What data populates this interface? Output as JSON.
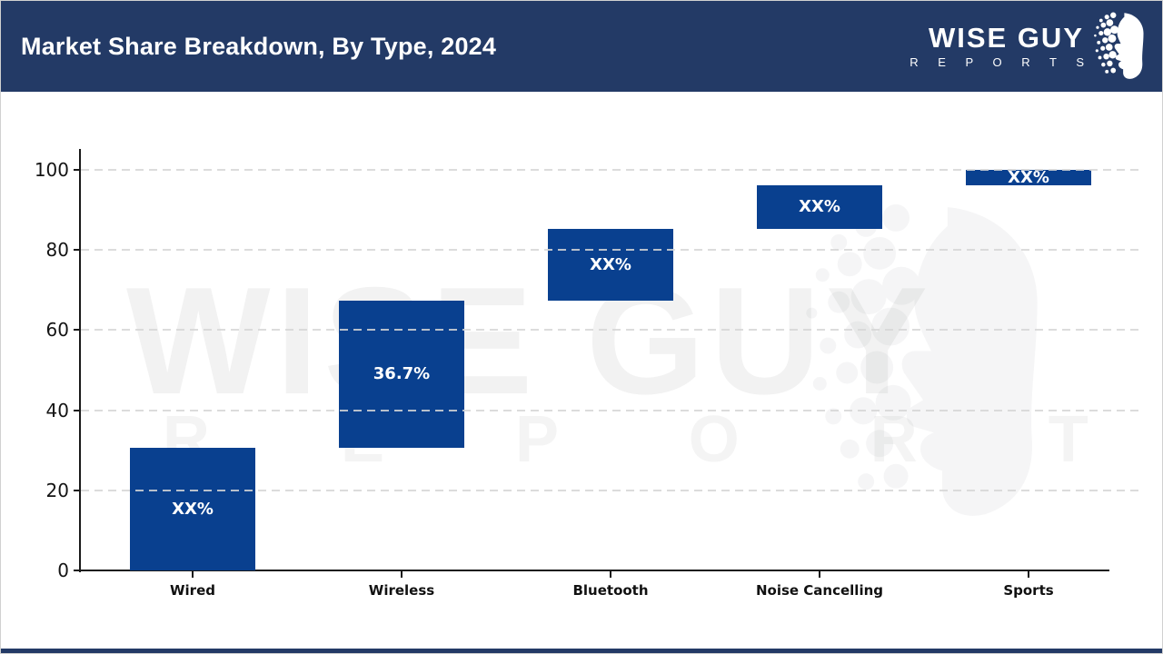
{
  "header": {
    "title": "Market Share Breakdown, By Type, 2024",
    "brand_line1": "WISE GUY",
    "brand_line2": "R E P O R T S"
  },
  "watermark": {
    "line1": "WISE GUY",
    "line2": "R E P O R T S"
  },
  "colors": {
    "header_bg": "#233A66",
    "bar": "#09408F",
    "grid": "#d6d6d6",
    "axis": "#1a1a1a",
    "tick_label": "#141414",
    "bar_label": "#ffffff",
    "footer_bar": "#233A66"
  },
  "chart_data": {
    "type": "bar",
    "subtype": "waterfall",
    "title": "Market Share Breakdown, By Type, 2024",
    "xlabel": "",
    "ylabel": "",
    "categories": [
      "Wired",
      "Wireless",
      "Bluetooth",
      "Noise Cancelling",
      "Sports"
    ],
    "segments": [
      {
        "category": "Wired",
        "start": 0,
        "end": 30.6,
        "label": "XX%"
      },
      {
        "category": "Wireless",
        "start": 30.6,
        "end": 67.3,
        "label": "36.7%"
      },
      {
        "category": "Bluetooth",
        "start": 67.3,
        "end": 85.2,
        "label": "XX%"
      },
      {
        "category": "Noise Cancelling",
        "start": 85.2,
        "end": 96.1,
        "label": "XX%"
      },
      {
        "category": "Sports",
        "start": 96.1,
        "end": 100,
        "label": "XX%"
      }
    ],
    "yticks": [
      0,
      20,
      40,
      60,
      80,
      100
    ],
    "ylim": [
      0,
      105
    ],
    "grid": "dashed-horizontal",
    "legend": "none"
  }
}
